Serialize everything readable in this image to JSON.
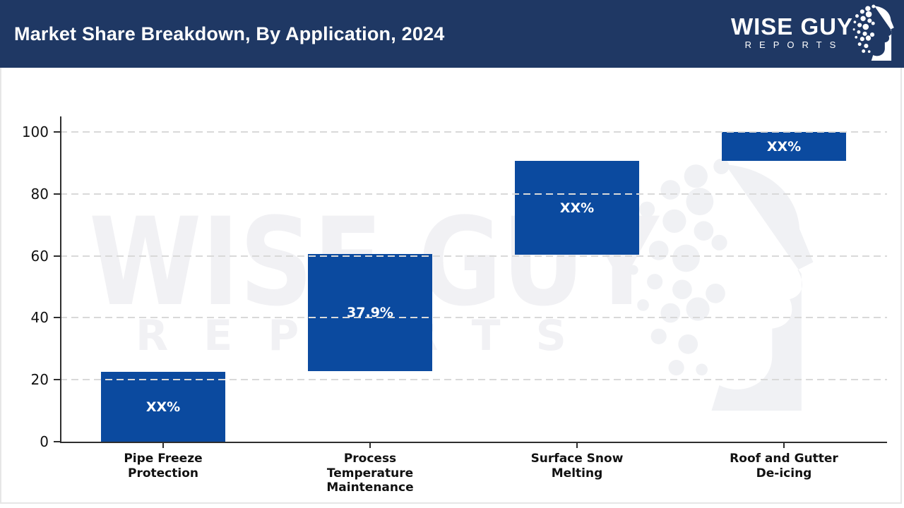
{
  "header": {
    "title": "Market Share Breakdown, By Application, 2024",
    "logo": {
      "line1": "WISE GUY",
      "line2": "REPORTS",
      "icon": "face-profile-dots-icon"
    }
  },
  "watermark": {
    "line1": "WISE GUY",
    "line2": "REPORTS",
    "icon": "face-profile-dots-icon"
  },
  "colors": {
    "header_bg": "#1F3864",
    "bar": "#0B4A9F",
    "bar_label": "#ffffff",
    "gridline": "#d9d9d9",
    "axis": "#2e2e2e",
    "watermark": "#f1f1f4"
  },
  "chart_data": {
    "type": "bar",
    "subtype": "waterfall",
    "title": "Market Share Breakdown, By Application, 2024",
    "xlabel": "",
    "ylabel": "",
    "ylim": [
      0,
      105
    ],
    "yticks": [
      0,
      20,
      40,
      60,
      80,
      100
    ],
    "grid": "dashed-horizontal",
    "legend": "none",
    "categories": [
      "Pipe Freeze\nProtection",
      "Process\nTemperature\nMaintenance",
      "Surface Snow\nMelting",
      "Roof and Gutter\nDe-icing"
    ],
    "segments": [
      {
        "category": "Pipe Freeze Protection",
        "start": 0,
        "end": 22.6,
        "label": "XX%"
      },
      {
        "category": "Process Temperature Maintenance",
        "start": 22.6,
        "end": 60.5,
        "label": "37.9%",
        "value": 37.9
      },
      {
        "category": "Surface Snow Melting",
        "start": 60.5,
        "end": 90.7,
        "label": "XX%"
      },
      {
        "category": "Roof and Gutter De-icing",
        "start": 90.7,
        "end": 100,
        "label": "XX%"
      }
    ]
  }
}
